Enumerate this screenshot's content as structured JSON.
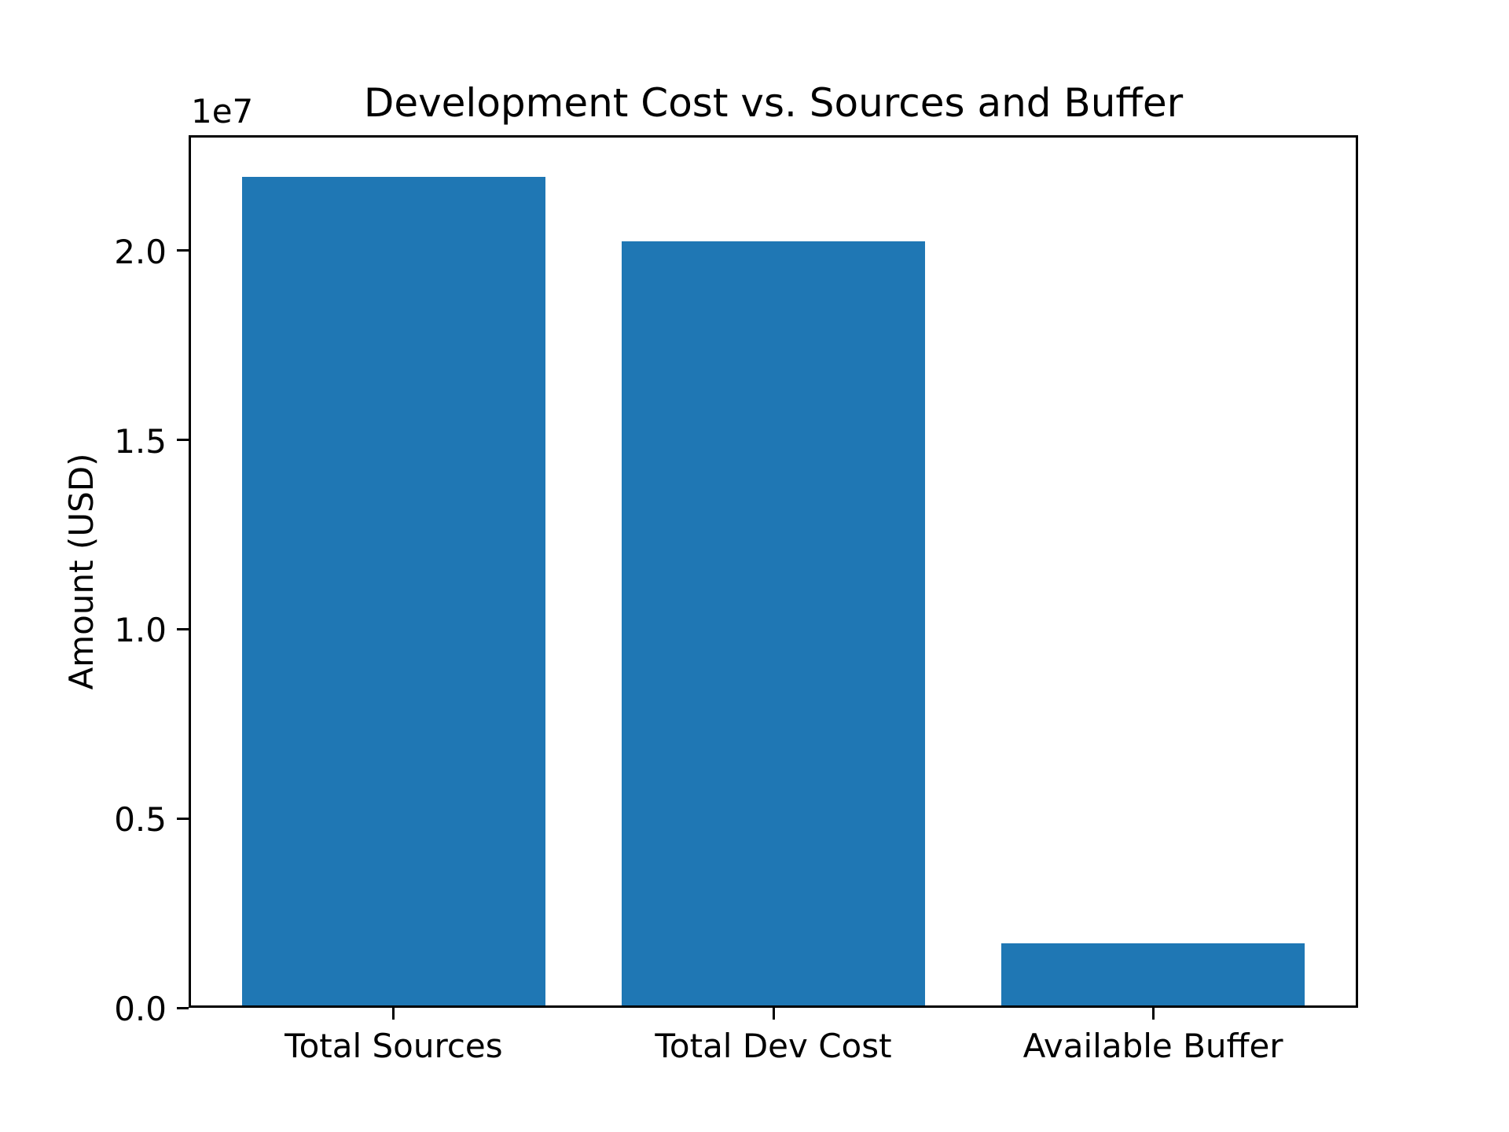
{
  "chart_data": {
    "type": "bar",
    "title": "Development Cost vs. Sources and Buffer",
    "xlabel": "",
    "ylabel": "Amount (USD)",
    "offset_label": "1e7",
    "categories": [
      "Total Sources",
      "Total Dev Cost",
      "Available Buffer"
    ],
    "values": [
      21950000,
      20250000,
      1700000
    ],
    "ylim": [
      0,
      23050000
    ],
    "yticks": [
      0,
      5000000,
      10000000,
      15000000,
      20000000
    ],
    "ytick_labels": [
      "0.0",
      "0.5",
      "1.0",
      "1.5",
      "2.0"
    ],
    "bar_color": "#1f77b4",
    "axis_color": "#000000",
    "background_color": "#ffffff",
    "grid": false,
    "legend": null,
    "bar_width_fraction": 0.8,
    "x_margin_fraction": 0.54
  }
}
